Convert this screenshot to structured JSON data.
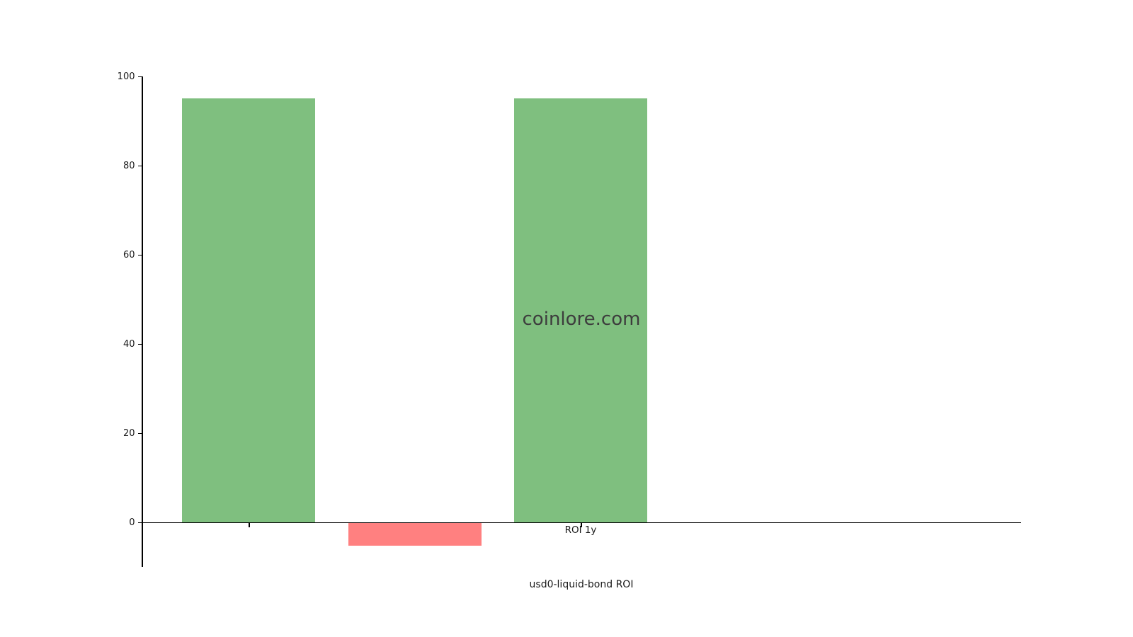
{
  "chart_data": {
    "type": "bar",
    "title": "usd0-liquid-bond ROI",
    "watermark": "coinlore.com",
    "categories": [
      "",
      "",
      "ROI 1y"
    ],
    "values": [
      95,
      -5,
      95
    ],
    "visible_xticks": [
      {
        "category_index": 0,
        "label": ""
      },
      {
        "category_index": 2,
        "label": "ROI 1y"
      }
    ],
    "yticks": [
      0,
      20,
      40,
      60,
      80,
      100
    ],
    "ylim": [
      -10,
      100
    ],
    "xlabel": "",
    "ylabel": "",
    "legend_position": "none",
    "grid": false,
    "bar_colors": {
      "positive": "#7fbf7f",
      "negative": "#ff8080"
    },
    "axis_color": "#000000",
    "text_color": "#1a1a1a",
    "watermark_color": "#3d3d3d",
    "background_color": "#ffffff"
  }
}
